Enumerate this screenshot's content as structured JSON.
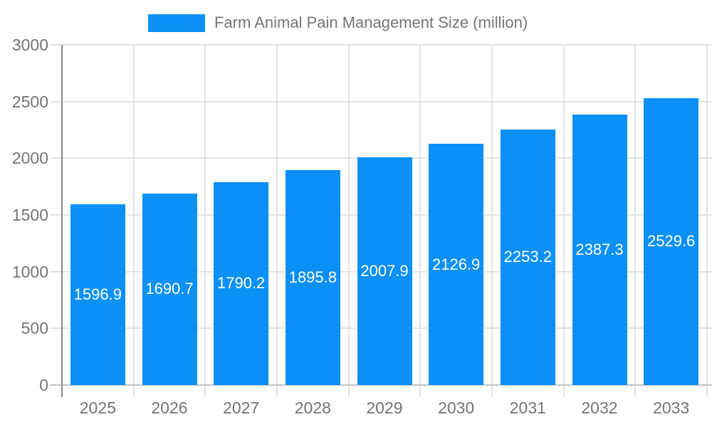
{
  "legend": {
    "label": "Farm Animal Pain Management Size (million)"
  },
  "chart_data": {
    "type": "bar",
    "title": "Farm Animal Pain Management Size (million)",
    "categories": [
      "2025",
      "2026",
      "2027",
      "2028",
      "2029",
      "2030",
      "2031",
      "2032",
      "2033"
    ],
    "values": [
      1596.9,
      1690.7,
      1790.2,
      1895.8,
      2007.9,
      2126.9,
      2253.2,
      2387.3,
      2529.6
    ],
    "value_labels": [
      "1596.9",
      "1690.7",
      "1790.2",
      "1895.8",
      "2007.9",
      "2126.9",
      "2253.2",
      "2387.3",
      "2529.6"
    ],
    "xlabel": "",
    "ylabel": "",
    "ylim": [
      0,
      3000
    ],
    "yticks": [
      0,
      500,
      1000,
      1500,
      2000,
      2500,
      3000
    ],
    "grid": true,
    "legend_position": "top-center",
    "bar_color": "#0b90f5",
    "value_label_color": "#ffffff"
  },
  "colors": {
    "accent": "#0b90f5",
    "grid": "#e3e3e3",
    "x_axis": "#c2c2c2",
    "y_axis": "#8a8a8a",
    "text": "#757575",
    "background": "#ffffff"
  }
}
